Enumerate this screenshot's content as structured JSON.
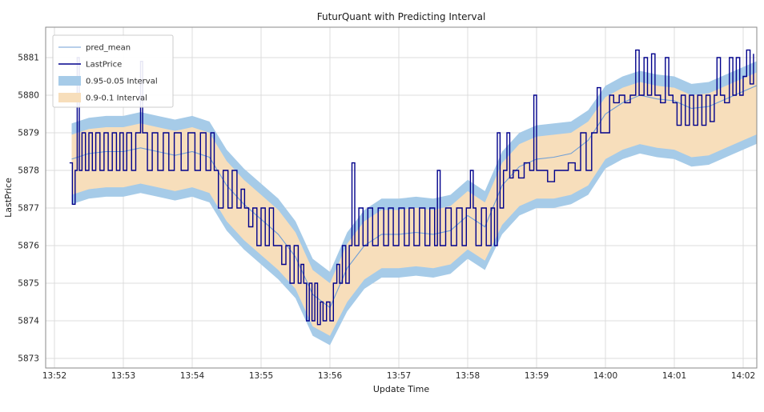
{
  "chart_data": {
    "type": "line",
    "title": "FuturQuant with Predicting Interval",
    "xlabel": "Update Time",
    "ylabel": "LastPrice",
    "grid": true,
    "legend_position": "upper left",
    "x_axis_note": "minutes after 13:52",
    "x_axis_range": [
      -0.13,
      10.2
    ],
    "y_axis_range": [
      5872.74,
      5881.81
    ],
    "x_ticks": [
      {
        "label": "13:52",
        "t": 0
      },
      {
        "label": "13:53",
        "t": 1
      },
      {
        "label": "13:54",
        "t": 2
      },
      {
        "label": "13:55",
        "t": 3
      },
      {
        "label": "13:56",
        "t": 4
      },
      {
        "label": "13:57",
        "t": 5
      },
      {
        "label": "13:58",
        "t": 6
      },
      {
        "label": "13:59",
        "t": 7
      },
      {
        "label": "14:00",
        "t": 8
      },
      {
        "label": "14:01",
        "t": 9
      },
      {
        "label": "14:02",
        "t": 10
      }
    ],
    "y_ticks": [
      5873,
      5874,
      5875,
      5876,
      5877,
      5878,
      5879,
      5880,
      5881
    ],
    "quantile_x": [
      0.25,
      0.5,
      0.75,
      1.0,
      1.25,
      1.5,
      1.75,
      2.0,
      2.25,
      2.5,
      2.75,
      3.0,
      3.25,
      3.5,
      3.75,
      4.0,
      4.25,
      4.5,
      4.75,
      5.0,
      5.25,
      5.5,
      5.75,
      6.0,
      6.25,
      6.5,
      6.75,
      7.0,
      7.25,
      7.5,
      7.75,
      8.0,
      8.25,
      8.5,
      8.75,
      9.0,
      9.25,
      9.5,
      9.75,
      10.0,
      10.25
    ],
    "pred_mean": [
      5878.3,
      5878.45,
      5878.5,
      5878.5,
      5878.6,
      5878.5,
      5878.4,
      5878.5,
      5878.35,
      5877.6,
      5877.1,
      5876.7,
      5876.3,
      5875.7,
      5874.7,
      5874.35,
      5875.4,
      5876.0,
      5876.3,
      5876.3,
      5876.35,
      5876.3,
      5876.4,
      5876.8,
      5876.5,
      5877.6,
      5878.1,
      5878.3,
      5878.35,
      5878.45,
      5878.8,
      5879.5,
      5879.8,
      5880.0,
      5879.9,
      5879.85,
      5879.65,
      5879.7,
      5879.9,
      5880.1,
      5880.3
    ],
    "bands": [
      {
        "name": "0.95-0.05 Interval",
        "color": "#a6cbe8",
        "hi": [
          5879.25,
          5879.4,
          5879.45,
          5879.45,
          5879.55,
          5879.45,
          5879.35,
          5879.45,
          5879.3,
          5878.55,
          5878.05,
          5877.65,
          5877.25,
          5876.65,
          5875.65,
          5875.3,
          5876.35,
          5876.95,
          5877.25,
          5877.25,
          5877.3,
          5877.25,
          5877.35,
          5877.75,
          5877.45,
          5878.5,
          5879.0,
          5879.2,
          5879.25,
          5879.3,
          5879.6,
          5880.25,
          5880.5,
          5880.65,
          5880.55,
          5880.5,
          5880.3,
          5880.35,
          5880.55,
          5880.75,
          5880.95
        ],
        "lo": [
          5877.1,
          5877.25,
          5877.3,
          5877.3,
          5877.4,
          5877.3,
          5877.2,
          5877.3,
          5877.15,
          5876.4,
          5875.9,
          5875.5,
          5875.1,
          5874.6,
          5873.6,
          5873.35,
          5874.25,
          5874.85,
          5875.15,
          5875.15,
          5875.2,
          5875.15,
          5875.25,
          5875.65,
          5875.35,
          5876.3,
          5876.8,
          5877.0,
          5877.0,
          5877.1,
          5877.35,
          5878.05,
          5878.3,
          5878.45,
          5878.35,
          5878.3,
          5878.1,
          5878.15,
          5878.35,
          5878.55,
          5878.75
        ]
      },
      {
        "name": "0.9-0.1 Interval",
        "color": "#f7debb",
        "hi": [
          5878.95,
          5879.1,
          5879.15,
          5879.15,
          5879.25,
          5879.15,
          5879.05,
          5879.15,
          5879.0,
          5878.25,
          5877.75,
          5877.35,
          5876.95,
          5876.35,
          5875.35,
          5875.0,
          5876.05,
          5876.65,
          5876.95,
          5876.95,
          5877.0,
          5876.95,
          5877.05,
          5877.45,
          5877.15,
          5878.2,
          5878.7,
          5878.9,
          5878.95,
          5879.0,
          5879.3,
          5879.95,
          5880.2,
          5880.35,
          5880.25,
          5880.2,
          5880.0,
          5880.05,
          5880.25,
          5880.45,
          5880.65
        ],
        "lo": [
          5877.35,
          5877.5,
          5877.55,
          5877.55,
          5877.65,
          5877.55,
          5877.45,
          5877.55,
          5877.4,
          5876.65,
          5876.15,
          5875.75,
          5875.35,
          5874.85,
          5873.85,
          5873.6,
          5874.5,
          5875.1,
          5875.4,
          5875.4,
          5875.45,
          5875.4,
          5875.5,
          5875.9,
          5875.6,
          5876.55,
          5877.05,
          5877.25,
          5877.25,
          5877.35,
          5877.6,
          5878.3,
          5878.55,
          5878.7,
          5878.6,
          5878.55,
          5878.35,
          5878.4,
          5878.6,
          5878.8,
          5879.0
        ]
      }
    ],
    "last_price_points": [
      [
        0.22,
        5878.2
      ],
      [
        0.26,
        5877.1
      ],
      [
        0.3,
        5878.0
      ],
      [
        0.33,
        5881.0
      ],
      [
        0.36,
        5878.0
      ],
      [
        0.4,
        5879.0
      ],
      [
        0.45,
        5878.0
      ],
      [
        0.5,
        5879.0
      ],
      [
        0.55,
        5878.0
      ],
      [
        0.6,
        5879.0
      ],
      [
        0.66,
        5878.0
      ],
      [
        0.72,
        5879.0
      ],
      [
        0.78,
        5878.0
      ],
      [
        0.84,
        5879.0
      ],
      [
        0.9,
        5878.0
      ],
      [
        0.95,
        5879.0
      ],
      [
        1.0,
        5878.0
      ],
      [
        1.05,
        5879.0
      ],
      [
        1.12,
        5878.0
      ],
      [
        1.18,
        5879.0
      ],
      [
        1.25,
        5880.9
      ],
      [
        1.28,
        5879.0
      ],
      [
        1.35,
        5878.0
      ],
      [
        1.42,
        5879.0
      ],
      [
        1.5,
        5878.0
      ],
      [
        1.58,
        5879.0
      ],
      [
        1.66,
        5878.0
      ],
      [
        1.74,
        5879.0
      ],
      [
        1.84,
        5878.0
      ],
      [
        1.94,
        5879.0
      ],
      [
        2.04,
        5878.0
      ],
      [
        2.12,
        5879.0
      ],
      [
        2.2,
        5878.0
      ],
      [
        2.27,
        5879.0
      ],
      [
        2.32,
        5878.0
      ],
      [
        2.38,
        5877.0
      ],
      [
        2.45,
        5878.0
      ],
      [
        2.52,
        5877.0
      ],
      [
        2.58,
        5878.0
      ],
      [
        2.65,
        5877.0
      ],
      [
        2.71,
        5877.5
      ],
      [
        2.76,
        5877.0
      ],
      [
        2.82,
        5876.5
      ],
      [
        2.88,
        5877.0
      ],
      [
        2.94,
        5876.0
      ],
      [
        3.0,
        5877.0
      ],
      [
        3.06,
        5876.0
      ],
      [
        3.12,
        5877.0
      ],
      [
        3.18,
        5876.0
      ],
      [
        3.24,
        5876.0
      ],
      [
        3.3,
        5875.5
      ],
      [
        3.36,
        5876.0
      ],
      [
        3.42,
        5875.0
      ],
      [
        3.48,
        5876.0
      ],
      [
        3.54,
        5875.0
      ],
      [
        3.58,
        5875.5
      ],
      [
        3.62,
        5875.0
      ],
      [
        3.66,
        5874.0
      ],
      [
        3.7,
        5875.0
      ],
      [
        3.74,
        5874.0
      ],
      [
        3.78,
        5875.0
      ],
      [
        3.82,
        5873.9
      ],
      [
        3.86,
        5874.5
      ],
      [
        3.9,
        5874.0
      ],
      [
        3.95,
        5874.5
      ],
      [
        4.0,
        5874.0
      ],
      [
        4.05,
        5875.0
      ],
      [
        4.1,
        5875.5
      ],
      [
        4.14,
        5875.0
      ],
      [
        4.18,
        5876.0
      ],
      [
        4.23,
        5875.0
      ],
      [
        4.28,
        5876.0
      ],
      [
        4.32,
        5878.2
      ],
      [
        4.36,
        5876.0
      ],
      [
        4.42,
        5877.0
      ],
      [
        4.48,
        5876.0
      ],
      [
        4.55,
        5877.0
      ],
      [
        4.62,
        5876.0
      ],
      [
        4.7,
        5877.0
      ],
      [
        4.78,
        5876.0
      ],
      [
        4.85,
        5877.0
      ],
      [
        4.92,
        5876.0
      ],
      [
        5.0,
        5877.0
      ],
      [
        5.08,
        5876.0
      ],
      [
        5.15,
        5877.0
      ],
      [
        5.22,
        5876.0
      ],
      [
        5.3,
        5877.0
      ],
      [
        5.38,
        5876.0
      ],
      [
        5.45,
        5877.0
      ],
      [
        5.52,
        5876.0
      ],
      [
        5.56,
        5878.0
      ],
      [
        5.6,
        5876.0
      ],
      [
        5.68,
        5877.0
      ],
      [
        5.76,
        5876.0
      ],
      [
        5.84,
        5877.0
      ],
      [
        5.92,
        5876.0
      ],
      [
        5.98,
        5877.0
      ],
      [
        6.04,
        5878.0
      ],
      [
        6.08,
        5877.0
      ],
      [
        6.12,
        5876.0
      ],
      [
        6.2,
        5877.0
      ],
      [
        6.27,
        5876.0
      ],
      [
        6.34,
        5877.0
      ],
      [
        6.39,
        5876.0
      ],
      [
        6.43,
        5879.0
      ],
      [
        6.47,
        5877.0
      ],
      [
        6.52,
        5878.0
      ],
      [
        6.57,
        5879.0
      ],
      [
        6.61,
        5877.8
      ],
      [
        6.66,
        5878.0
      ],
      [
        6.74,
        5877.8
      ],
      [
        6.82,
        5878.2
      ],
      [
        6.9,
        5878.0
      ],
      [
        6.96,
        5880.0
      ],
      [
        7.0,
        5878.0
      ],
      [
        7.08,
        5878.0
      ],
      [
        7.16,
        5877.7
      ],
      [
        7.26,
        5878.0
      ],
      [
        7.36,
        5878.0
      ],
      [
        7.46,
        5878.2
      ],
      [
        7.56,
        5878.0
      ],
      [
        7.64,
        5879.0
      ],
      [
        7.72,
        5878.0
      ],
      [
        7.8,
        5879.0
      ],
      [
        7.88,
        5880.2
      ],
      [
        7.93,
        5879.0
      ],
      [
        8.0,
        5879.0
      ],
      [
        8.06,
        5880.0
      ],
      [
        8.12,
        5879.8
      ],
      [
        8.2,
        5880.0
      ],
      [
        8.28,
        5879.8
      ],
      [
        8.36,
        5880.0
      ],
      [
        8.44,
        5881.2
      ],
      [
        8.49,
        5880.0
      ],
      [
        8.56,
        5881.0
      ],
      [
        8.61,
        5880.0
      ],
      [
        8.67,
        5881.1
      ],
      [
        8.72,
        5880.0
      ],
      [
        8.8,
        5879.8
      ],
      [
        8.87,
        5881.0
      ],
      [
        8.92,
        5880.0
      ],
      [
        8.98,
        5879.8
      ],
      [
        9.04,
        5879.2
      ],
      [
        9.1,
        5880.0
      ],
      [
        9.16,
        5879.2
      ],
      [
        9.22,
        5880.0
      ],
      [
        9.28,
        5879.2
      ],
      [
        9.34,
        5880.0
      ],
      [
        9.4,
        5879.2
      ],
      [
        9.46,
        5880.0
      ],
      [
        9.52,
        5879.3
      ],
      [
        9.58,
        5880.0
      ],
      [
        9.62,
        5881.0
      ],
      [
        9.67,
        5880.0
      ],
      [
        9.73,
        5879.8
      ],
      [
        9.8,
        5881.0
      ],
      [
        9.85,
        5880.0
      ],
      [
        9.9,
        5881.0
      ],
      [
        9.95,
        5880.0
      ],
      [
        10.0,
        5880.5
      ],
      [
        10.05,
        5881.2
      ],
      [
        10.1,
        5880.3
      ],
      [
        10.15,
        5881.1
      ]
    ],
    "legend": [
      {
        "label": "pred_mean",
        "swatch": "line",
        "color": "#6f9fd6",
        "width": 1.1
      },
      {
        "label": "LastPrice",
        "swatch": "line",
        "color": "#00008b",
        "width": 1.6
      },
      {
        "label": "0.95-0.05 Interval",
        "swatch": "patch",
        "color": "#a6cbe8"
      },
      {
        "label": "0.9-0.1 Interval",
        "swatch": "patch",
        "color": "#f7debb"
      }
    ],
    "colors": {
      "pred_mean": "#6f9fd6",
      "last_price": "#00008b",
      "band_95_05": "#a6cbe8",
      "band_90_10": "#f7debb",
      "grid": "#dcdcdc",
      "spine": "#8a8a8a",
      "tick_text": "#262626",
      "title_text": "#1a1a1a",
      "background": "#ffffff"
    }
  }
}
